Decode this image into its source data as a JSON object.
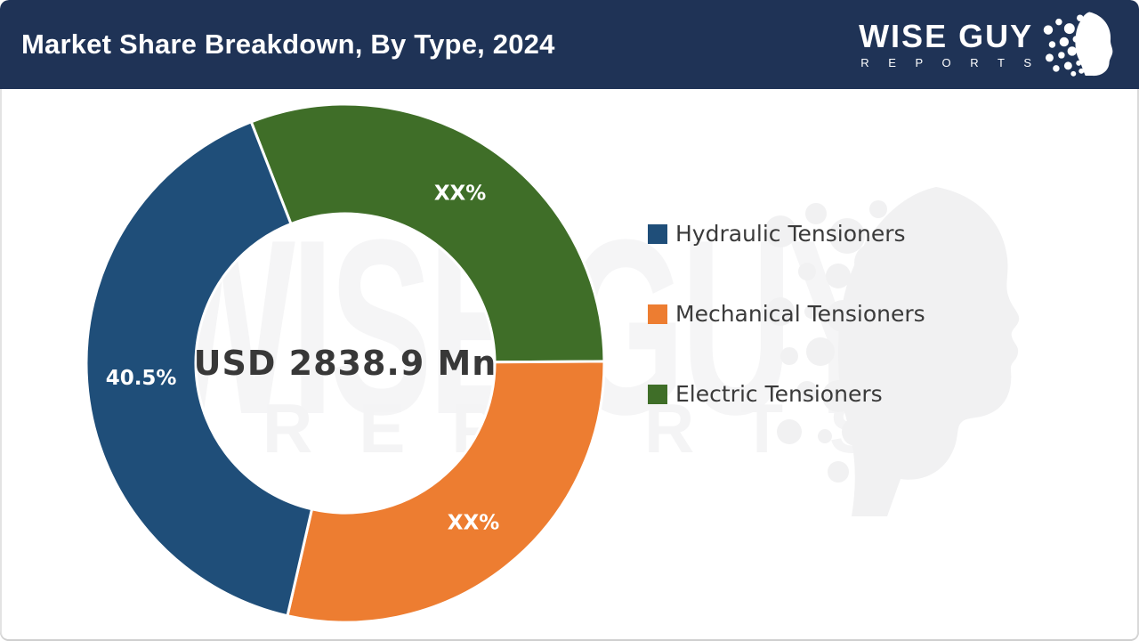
{
  "header": {
    "title": "Market Share Breakdown, By Type, 2024",
    "background_color": "#1f3356",
    "logo": {
      "line1": "WISE GUY",
      "line2": "R E P O R T S"
    }
  },
  "watermark": {
    "line1": "WISE GUY",
    "line2": "REPORTS"
  },
  "chart_data": {
    "type": "donut",
    "title": "Market Share Breakdown, By Type, 2024",
    "center_label": "USD 2838.9 Mn",
    "start_angle_deg": -21.3,
    "legend_position": "right",
    "segments": [
      {
        "name": "Electric Tensioners",
        "label": "XX%",
        "value": 30.8,
        "color": "#3f6e28",
        "note": "value estimated from arc angle; on-chart label is masked as XX%"
      },
      {
        "name": "Mechanical Tensioners",
        "label": "XX%",
        "value": 28.7,
        "color": "#ed7d31",
        "note": "value estimated from arc angle; on-chart label is masked as XX%"
      },
      {
        "name": "Hydraulic Tensioners",
        "label": "40.5%",
        "value": 40.5,
        "color": "#1f4e79"
      }
    ],
    "legend": [
      {
        "label": "Hydraulic Tensioners",
        "color": "#1f4e79"
      },
      {
        "label": "Mechanical Tensioners",
        "color": "#ed7d31"
      },
      {
        "label": "Electric Tensioners",
        "color": "#3f6e28"
      }
    ]
  }
}
